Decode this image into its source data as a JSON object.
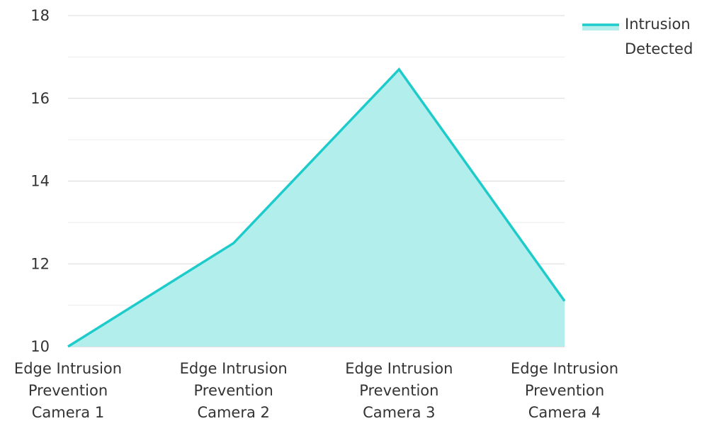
{
  "chart_data": {
    "type": "area",
    "title": "",
    "xlabel": "",
    "ylabel": "",
    "categories": [
      "Edge Intrusion Prevention Camera 1",
      "Edge Intrusion Prevention Camera 2",
      "Edge Intrusion Prevention Camera 3",
      "Edge Intrusion Prevention Camera 4"
    ],
    "category_lines": [
      [
        "Edge Intrusion",
        "Prevention",
        "Camera 1"
      ],
      [
        "Edge Intrusion",
        "Prevention",
        "Camera 2"
      ],
      [
        "Edge Intrusion",
        "Prevention",
        "Camera 3"
      ],
      [
        "Edge Intrusion",
        "Prevention",
        "Camera 4"
      ]
    ],
    "series": [
      {
        "name": "Intrusion Detected",
        "values": [
          10,
          12.5,
          16.7,
          11.1
        ],
        "line_color": "#1ecbcb",
        "fill_color": "#b2eeec"
      }
    ],
    "ylim": [
      10,
      18
    ],
    "yticks": [
      10,
      12,
      14,
      16,
      18
    ],
    "grid": true,
    "legend_position": "top-right",
    "legend_lines": [
      "Intrusion",
      "Detected"
    ]
  }
}
